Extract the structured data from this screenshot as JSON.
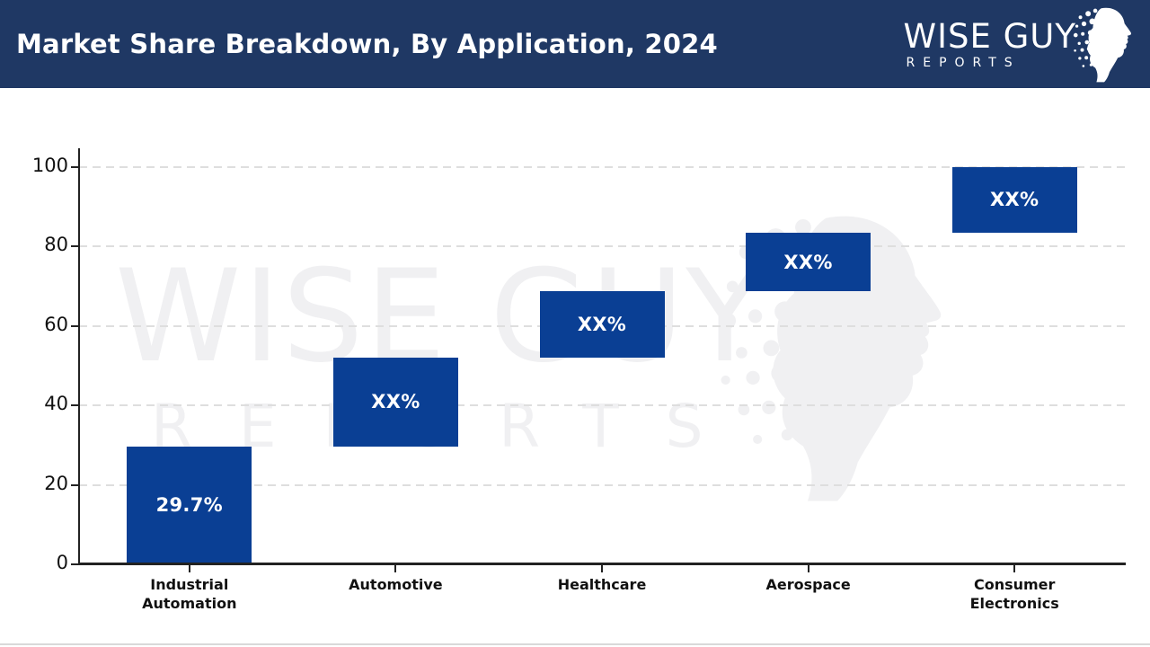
{
  "header": {
    "title": "Market Share Breakdown, By Application, 2024",
    "logo_name": "WISE GUY",
    "logo_sub": "REPORTS"
  },
  "watermark": {
    "name": "WISE GUY",
    "sub": "REPORTS"
  },
  "colors": {
    "header_bg": "#1f3864",
    "bar_fill": "#0a3f94",
    "bar_label": "#ffffff",
    "gridline": "#dedede",
    "axis": "#222222",
    "watermark": "#f0f0f2"
  },
  "chart_data": {
    "type": "bar",
    "subtype": "floating-waterfall",
    "title": "Market Share Breakdown, By Application, 2024",
    "xlabel": "",
    "ylabel": "",
    "ylim": [
      0,
      100
    ],
    "yticks": [
      0,
      20,
      40,
      60,
      80,
      100
    ],
    "grid": "horizontal-dashed",
    "legend": "none",
    "categories": [
      "Industrial\nAutomation",
      "Automotive",
      "Healthcare",
      "Aerospace",
      "Consumer\nElectronics"
    ],
    "segments": [
      {
        "category": "Industrial Automation",
        "start": 0,
        "end": 29.7,
        "label": "29.7%"
      },
      {
        "category": "Automotive",
        "start": 29.7,
        "end": 52.0,
        "label": "XX%"
      },
      {
        "category": "Healthcare",
        "start": 52.0,
        "end": 68.7,
        "label": "XX%"
      },
      {
        "category": "Aerospace",
        "start": 68.7,
        "end": 83.5,
        "label": "XX%"
      },
      {
        "category": "Consumer Electronics",
        "start": 83.5,
        "end": 100,
        "label": "XX%"
      }
    ]
  }
}
